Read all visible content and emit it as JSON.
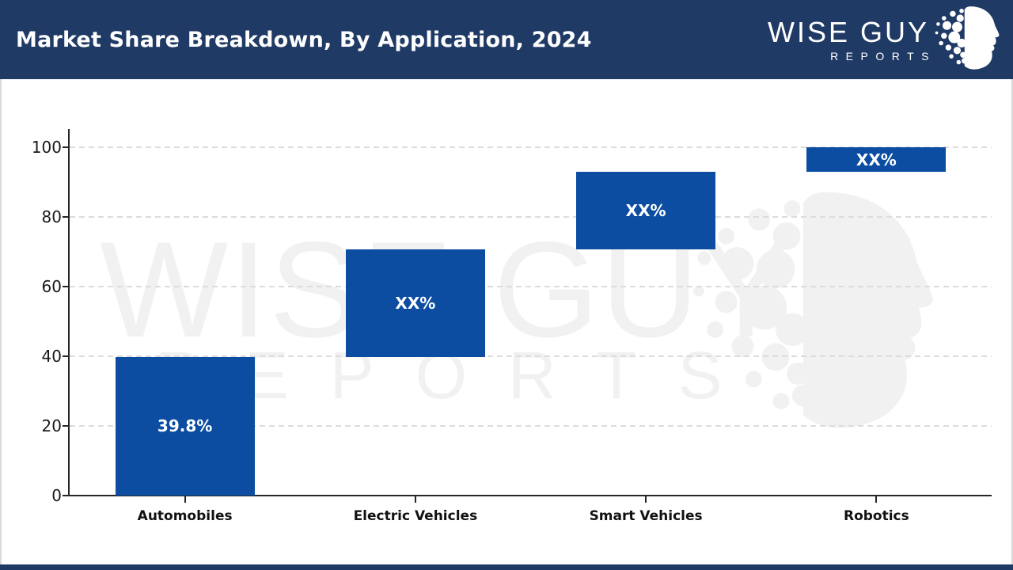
{
  "header": {
    "title": "Market Share Breakdown, By Application, 2024",
    "logo": {
      "line1": "WISE GUY",
      "line2": "REPORTS"
    }
  },
  "watermark": {
    "line1": "WISE GUY",
    "line2": "REPORTS"
  },
  "colors": {
    "header_bg": "#203a66",
    "footer_bg": "#203a66",
    "bar": "#0c4da2",
    "bar_label": "#ffffff",
    "grid": "#dcdcdc",
    "axis": "#262626",
    "watermark": "#f1f1f1"
  },
  "chart_data": {
    "type": "bar",
    "subtype": "waterfall",
    "title": "Market Share Breakdown, By Application, 2024",
    "categories": [
      "Automobiles",
      "Electric Vehicles",
      "Smart Vehicles",
      "Robotics"
    ],
    "segments": [
      {
        "category": "Automobiles",
        "start": 0,
        "end": 39.8,
        "label": "39.8%"
      },
      {
        "category": "Electric Vehicles",
        "start": 39.8,
        "end": 70.7,
        "label": "XX%"
      },
      {
        "category": "Smart Vehicles",
        "start": 70.7,
        "end": 92.9,
        "label": "XX%"
      },
      {
        "category": "Robotics",
        "start": 92.9,
        "end": 100,
        "label": "XX%"
      }
    ],
    "xlabel": "",
    "ylabel": "",
    "ylim": [
      0,
      100
    ],
    "yticks": [
      0,
      20,
      40,
      60,
      80,
      100
    ],
    "grid": "horizontal dashed",
    "legend": "none",
    "bar_color": "#0c4da2",
    "value_labels_inside_bars": true
  }
}
